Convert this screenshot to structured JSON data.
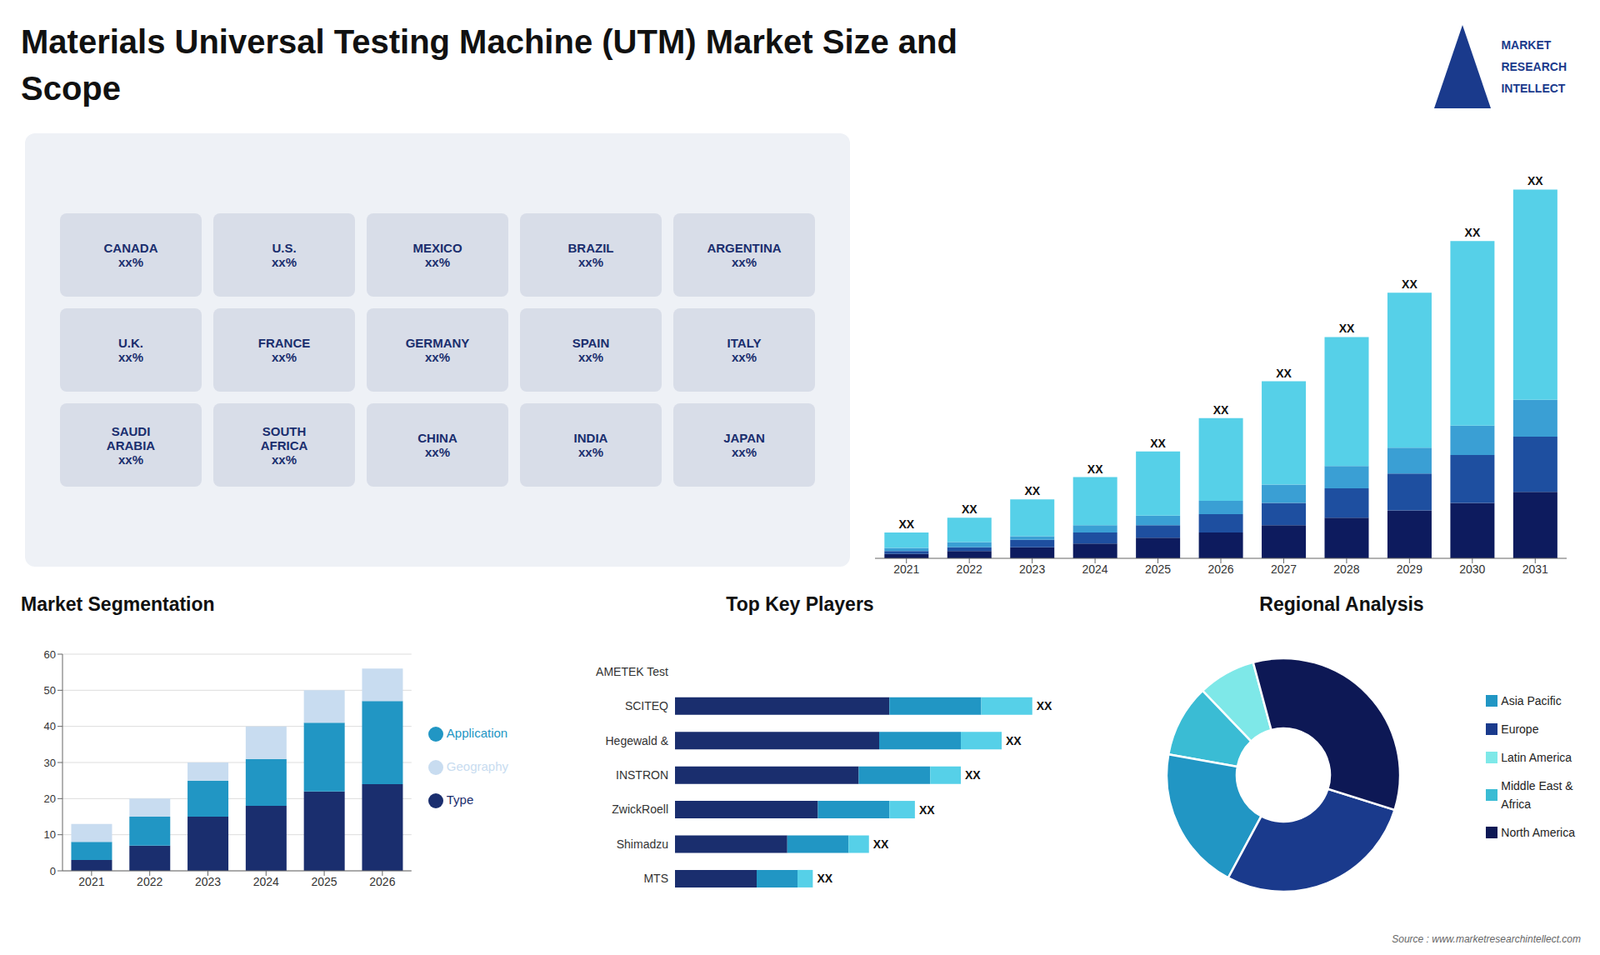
{
  "title": "Materials Universal Testing Machine (UTM) Market Size and\nScope",
  "source": "Source : www.marketresearchintellect.com",
  "annotations": [
    "MARKET",
    "RESEARCH",
    "INTELLECT",
    "CANADA\nxx%",
    "U.S.\nxx%",
    "MEXICO\nxx%",
    "BRAZIL\nxx%",
    "ARGENTINA\nxx%",
    "U.K.\nxx%",
    "FRANCE\nxx%",
    "GERMANY\nxx%",
    "SPAIN\nxx%",
    "ITALY\nxx%",
    "SAUDI\nARABIA\nxx%",
    "SOUTH\nAFRICA\nxx%",
    "CHINA\nxx%",
    "INDIA\nxx%",
    "JAPAN\nxx%"
  ],
  "chart_data": [
    {
      "type": "bar",
      "stacked": true,
      "categories": [
        "2021",
        "2022",
        "2023",
        "2024",
        "2025",
        "2026",
        "2027",
        "2028",
        "2029",
        "2030",
        "2031"
      ],
      "series": [
        {
          "color": "#0d1b5e",
          "values": [
            0.6,
            1.0,
            1.5,
            2.0,
            2.8,
            3.5,
            4.5,
            5.5,
            6.5,
            7.5,
            9.0
          ]
        },
        {
          "color": "#1e4fa0",
          "values": [
            0.4,
            0.5,
            1.0,
            1.5,
            1.7,
            2.5,
            3.0,
            4.0,
            5.0,
            6.5,
            7.5
          ]
        },
        {
          "color": "#3a9fd4",
          "values": [
            0.4,
            0.7,
            0.5,
            1.0,
            1.3,
            1.8,
            2.5,
            3.0,
            3.5,
            4.0,
            5.0
          ]
        },
        {
          "color": "#56d0e8",
          "values": [
            2.1,
            3.3,
            5.0,
            6.5,
            8.7,
            11.2,
            14.0,
            17.5,
            21.0,
            25.0,
            28.5
          ]
        }
      ],
      "annotations": [
        "XX",
        "XX",
        "XX",
        "XX",
        "XX",
        "XX",
        "XX",
        "XX",
        "XX",
        "XX",
        "XX"
      ],
      "ylim": [
        0,
        61
      ],
      "tick_labels": "x",
      "grid": false
    },
    {
      "type": "bar",
      "title": "Market Segmentation",
      "stacked": true,
      "categories": [
        "2021",
        "2022",
        "2023",
        "2024",
        "2025",
        "2026"
      ],
      "series": [
        {
          "name": "Type",
          "color": "#1a2e6e",
          "values": [
            3,
            7,
            15,
            18,
            22,
            24
          ]
        },
        {
          "name": "Application",
          "color": "#2196c4",
          "values": [
            5,
            8,
            10,
            13,
            19,
            23
          ]
        },
        {
          "name": "Geography",
          "color": "#c8dcf0",
          "values": [
            5,
            5,
            5,
            9,
            9,
            9
          ]
        }
      ],
      "ylim": [
        0,
        60
      ],
      "yticks": [
        0,
        10,
        20,
        30,
        40,
        50,
        60
      ],
      "grid": true,
      "legend": "right"
    },
    {
      "type": "bar",
      "title": "Top Key Players",
      "orientation": "horizontal",
      "stacked": true,
      "categories": [
        "AMETEK Test",
        "SCITEQ",
        "Hegewald &",
        "INSTRON",
        "ZwickRoell",
        "Shimadzu",
        "MTS"
      ],
      "series": [
        {
          "color": "#1a2e6e",
          "values": [
            0,
            42,
            40,
            36,
            28,
            22,
            16
          ]
        },
        {
          "color": "#2196c4",
          "values": [
            0,
            18,
            16,
            14,
            14,
            12,
            8
          ]
        },
        {
          "color": "#56d0e8",
          "values": [
            0,
            10,
            8,
            6,
            5,
            4,
            3
          ]
        }
      ],
      "annotations": [
        null,
        "XX",
        "XX",
        "XX",
        "XX",
        "XX",
        "XX"
      ],
      "xlim": [
        0,
        80
      ],
      "tick_labels": "y",
      "grid": false
    },
    {
      "type": "pie",
      "title": "Regional Analysis",
      "categories": [
        "Latin America",
        "Middle East &\nAfrica",
        "Asia Pacific",
        "Europe",
        "North America"
      ],
      "values": [
        8,
        10,
        20,
        28,
        34
      ],
      "colors": [
        "#7ee8e8",
        "#3abcd4",
        "#2196c4",
        "#1a3a8c",
        "#0d1855"
      ],
      "legend": "right"
    }
  ]
}
